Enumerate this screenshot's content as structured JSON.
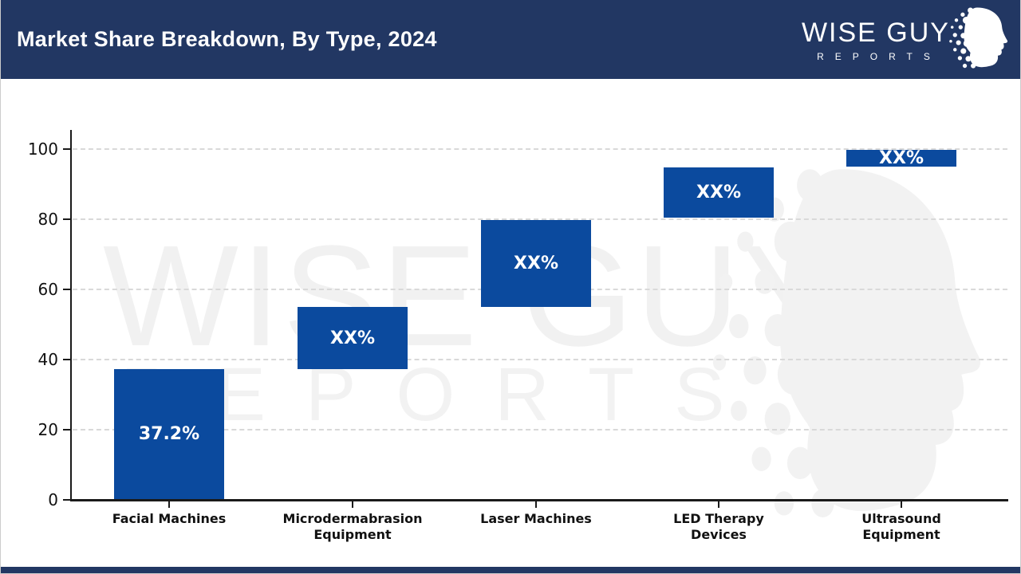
{
  "header": {
    "title": "Market Share Breakdown, By Type, 2024",
    "logo": {
      "line1": "WISE GUY",
      "line2": "REPORTS"
    }
  },
  "watermark": {
    "line1": "WISE GUY",
    "line2": "REPORTS"
  },
  "colors": {
    "header_navy": "#223763",
    "bar_blue": "#0b4a9e",
    "axis": "#1a1a1a",
    "gridline": "#d9d9d9",
    "value_label": "#ffffff",
    "watermark": "#f1f1f1"
  },
  "chart_data": {
    "type": "bar",
    "subtype": "waterfall",
    "title": "Market Share Breakdown, By Type, 2024",
    "categories": [
      "Facial Machines",
      "Microdermabrasion Equipment",
      "Laser Machines",
      "LED Therapy Devices",
      "Ultrasound Equipment"
    ],
    "category_label_lines": [
      [
        "Facial Machines"
      ],
      [
        "Microdermabrasion",
        "Equipment"
      ],
      [
        "Laser Machines"
      ],
      [
        "LED Therapy",
        "Devices"
      ],
      [
        "Ultrasound",
        "Equipment"
      ]
    ],
    "segments": [
      {
        "category": "Facial Machines",
        "label": "37.2%",
        "start": 0,
        "end": 37.2
      },
      {
        "category": "Microdermabrasion Equipment",
        "label": "XX%",
        "start": 37.2,
        "end": 54.9
      },
      {
        "category": "Laser Machines",
        "label": "XX%",
        "start": 54.9,
        "end": 79.8
      },
      {
        "category": "LED Therapy Devices",
        "label": "XX%",
        "start": 80.5,
        "end": 94.9
      },
      {
        "category": "Ultrasound Equipment",
        "label": "XX%",
        "start": 95.0,
        "end": 99.9
      }
    ],
    "y_ticks": [
      0,
      20,
      40,
      60,
      80,
      100
    ],
    "ylim": [
      0,
      105
    ],
    "xlabel": "",
    "ylabel": "",
    "grid": "horizontal-dashed",
    "legend": "none"
  }
}
